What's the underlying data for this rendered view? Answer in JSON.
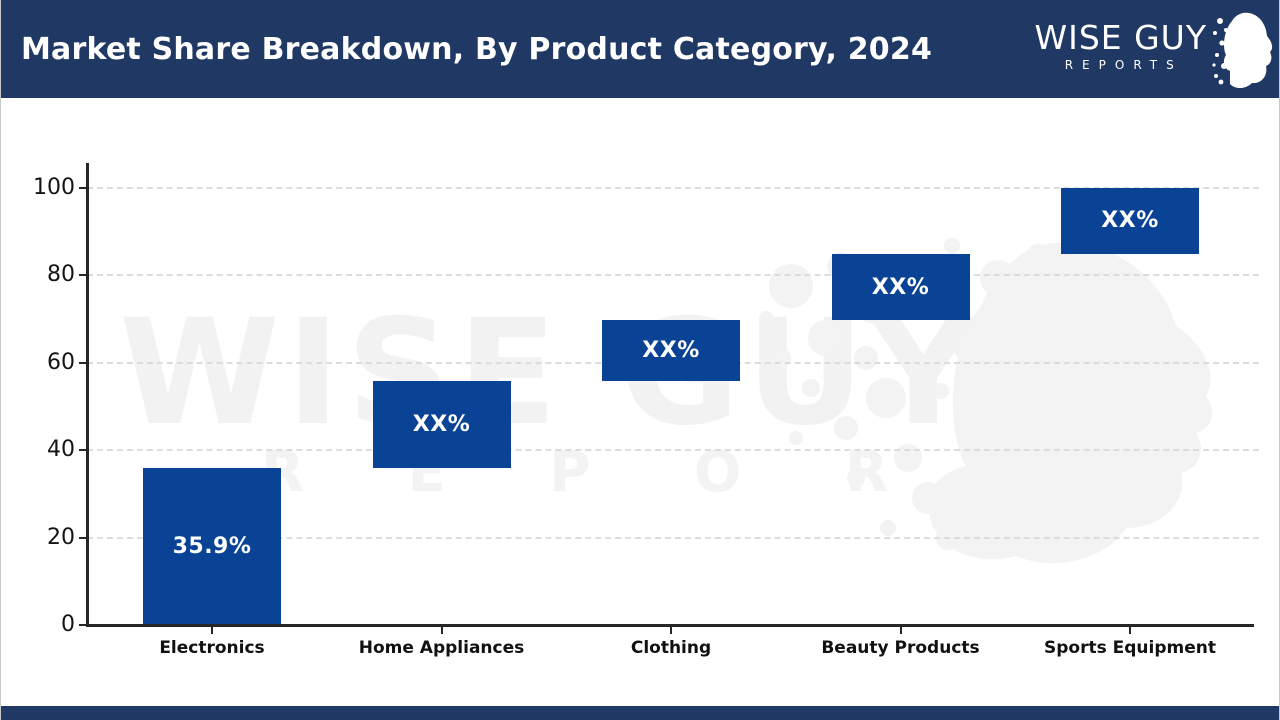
{
  "header": {
    "title": "Market Share Breakdown, By Product Category, 2024",
    "background_color": "#203864",
    "logo": {
      "line1": "WISE GUY",
      "line2": "REPORTS"
    }
  },
  "watermark": {
    "line1": "WISE GUY",
    "line2": "REPORTS"
  },
  "footer": {
    "background_color": "#203864"
  },
  "chart_data": {
    "type": "bar",
    "subtype": "waterfall",
    "title": "Market Share Breakdown, By Product Category, 2024",
    "categories": [
      "Electronics",
      "Home Appliances",
      "Clothing",
      "Beauty Products",
      "Sports Equipment"
    ],
    "segments": [
      {
        "category": "Electronics",
        "start": 0,
        "end": 35.9,
        "label": "35.9%"
      },
      {
        "category": "Home Appliances",
        "start": 35.9,
        "end": 55.8,
        "label": "XX%"
      },
      {
        "category": "Clothing",
        "start": 55.8,
        "end": 69.7,
        "label": "XX%"
      },
      {
        "category": "Beauty Products",
        "start": 69.7,
        "end": 84.8,
        "label": "XX%"
      },
      {
        "category": "Sports Equipment",
        "start": 84.8,
        "end": 100,
        "label": "XX%"
      }
    ],
    "xlabel": "",
    "ylabel": "",
    "ylim": [
      0,
      105
    ],
    "yticks": [
      0,
      20,
      40,
      60,
      80,
      100
    ],
    "grid": "horizontal-dashed",
    "legend": "none",
    "bar_color": "#0a4396",
    "bar_label_color": "#ffffff",
    "axis_color": "#262626",
    "grid_color": "#dcdcdc",
    "tick_label_color": "#151515"
  }
}
